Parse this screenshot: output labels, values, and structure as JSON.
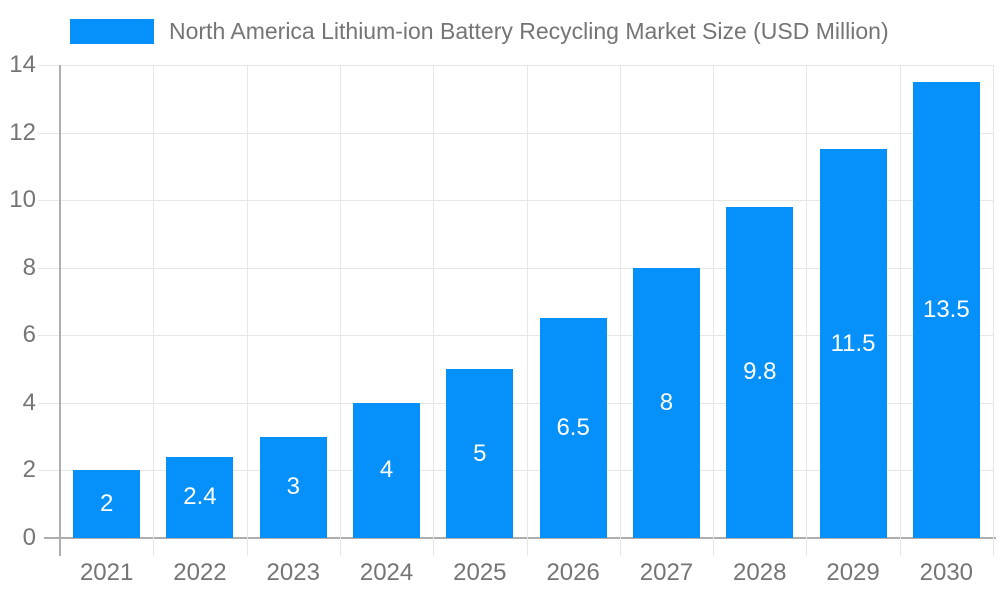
{
  "legend": {
    "label": "North America Lithium-ion Battery Recycling Market Size (USD Million)"
  },
  "chart_data": {
    "type": "bar",
    "title": "North America Lithium-ion Battery Recycling Market Size (USD Million)",
    "categories": [
      "2021",
      "2022",
      "2023",
      "2024",
      "2025",
      "2026",
      "2027",
      "2028",
      "2029",
      "2030"
    ],
    "values": [
      2,
      2.4,
      3,
      4,
      5,
      6.5,
      8,
      9.8,
      11.5,
      13.5
    ],
    "bar_value_labels": [
      "2",
      "2.4",
      "3",
      "4",
      "5",
      "6.5",
      "8",
      "9.8",
      "11.5",
      "13.5"
    ],
    "xlabel": "",
    "ylabel": "",
    "ylim": [
      0,
      14
    ],
    "yticks": [
      0,
      2,
      4,
      6,
      8,
      10,
      12,
      14
    ],
    "grid": true,
    "legend_position": "top",
    "value_labels_position": "inside-center"
  },
  "colors": {
    "bar": "#0690f9",
    "bar_label": "#ffffff",
    "axis_text": "#757575",
    "legend_text": "#757575",
    "gridline": "#e6e6e6",
    "axis_line": "#aeaeae",
    "background": "#ffffff"
  }
}
